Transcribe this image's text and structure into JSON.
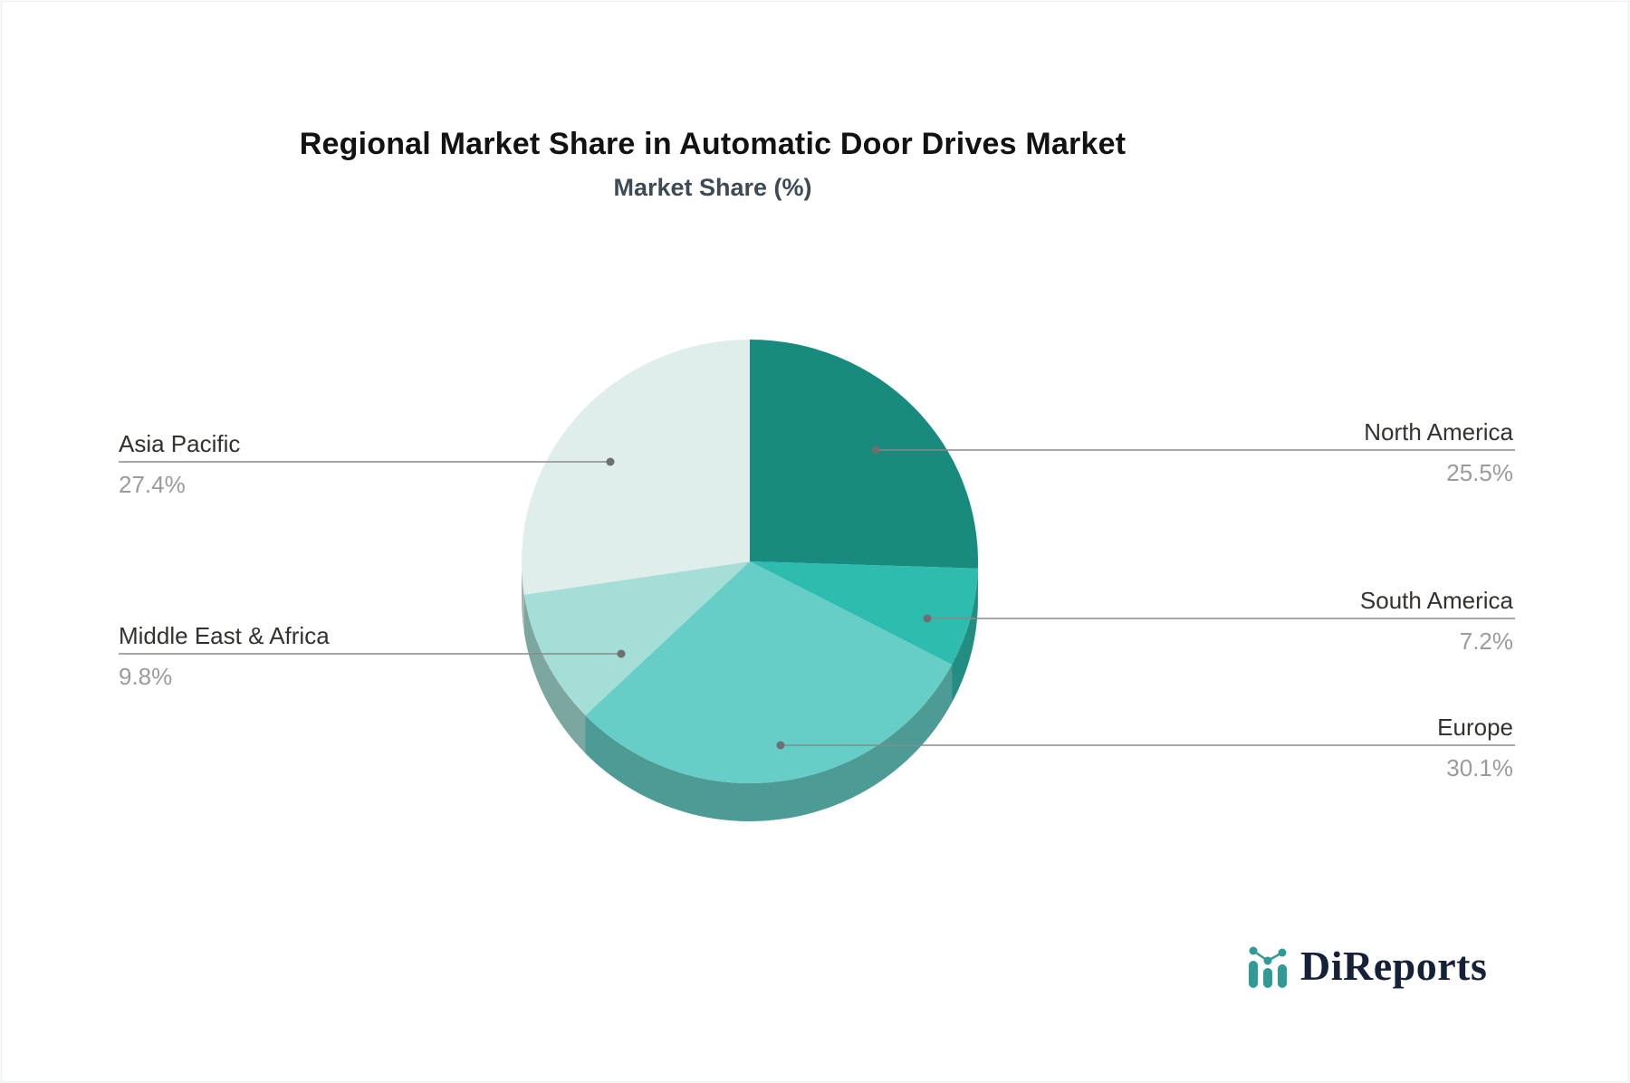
{
  "title": "Regional Market Share in Automatic Door Drives Market",
  "subtitle": "Market Share (%)",
  "brand": {
    "name": "DiReports",
    "icon": "bar-line-chart-icon"
  },
  "colors": {
    "leader_line": "#8a8a8a",
    "leader_dot": "#6f6f6f",
    "label_text": "#34312e",
    "value_text": "#9b9b9b",
    "title_text": "#121212",
    "subtitle_text": "#3e4a54",
    "brand_text": "#152138",
    "brand_icon": "#2f9b94"
  },
  "chart_data": {
    "type": "pie",
    "style": "3d",
    "title": "Regional Market Share in Automatic Door Drives Market",
    "subtitle": "Market Share (%)",
    "unit": "%",
    "start_angle_deg": 0,
    "direction": "clockwise",
    "legend_position": "none",
    "slices": [
      {
        "label": "North America",
        "value": 25.5,
        "display": "25.5%",
        "color": "#198a7e"
      },
      {
        "label": "South America",
        "value": 7.2,
        "display": "7.2%",
        "color": "#2ebcae"
      },
      {
        "label": "Europe",
        "value": 30.1,
        "display": "30.1%",
        "color": "#66cec6"
      },
      {
        "label": "Middle East & Africa",
        "value": 9.8,
        "display": "9.8%",
        "color": "#a5ded6"
      },
      {
        "label": "Asia Pacific",
        "value": 27.4,
        "display": "27.4%",
        "color": "#dfeeeb"
      }
    ]
  }
}
